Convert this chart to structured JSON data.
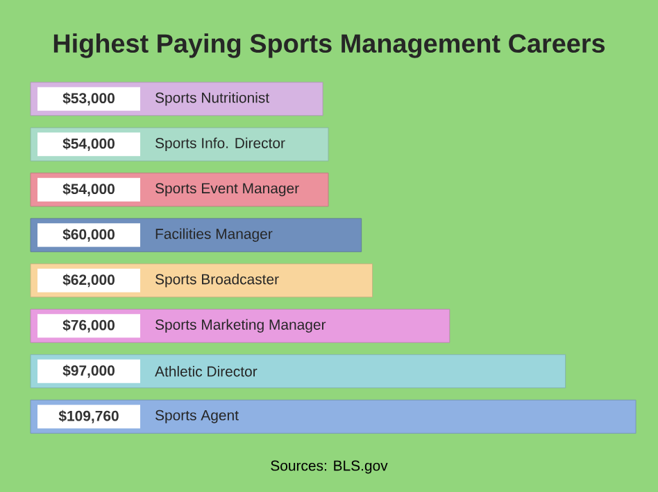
{
  "chart_data": {
    "type": "bar",
    "orientation": "horizontal",
    "title": "Highest Paying Sports Management Careers",
    "categories": [
      "Sports Nutritionist",
      "Sports Info. Director",
      "Sports Event Manager",
      "Facilities Manager",
      "Sports Broadcaster",
      "Sports Marketing Manager",
      "Athletic Director",
      "Sports Agent"
    ],
    "values": [
      53000,
      54000,
      54000,
      60000,
      62000,
      76000,
      97000,
      109760
    ],
    "value_labels": [
      "$53,000",
      "$54,000",
      "$54,000",
      "$60,000",
      "$62,000",
      "$76,000",
      "$97,000",
      "$109,760"
    ],
    "colors": [
      "#d6b4e2",
      "#a9dcc9",
      "#ec919c",
      "#6f8fbd",
      "#f9d59c",
      "#e89ce0",
      "#9bd6dc",
      "#8fb1e3"
    ],
    "annotations": [
      "Sources: BLS.gov"
    ]
  }
}
